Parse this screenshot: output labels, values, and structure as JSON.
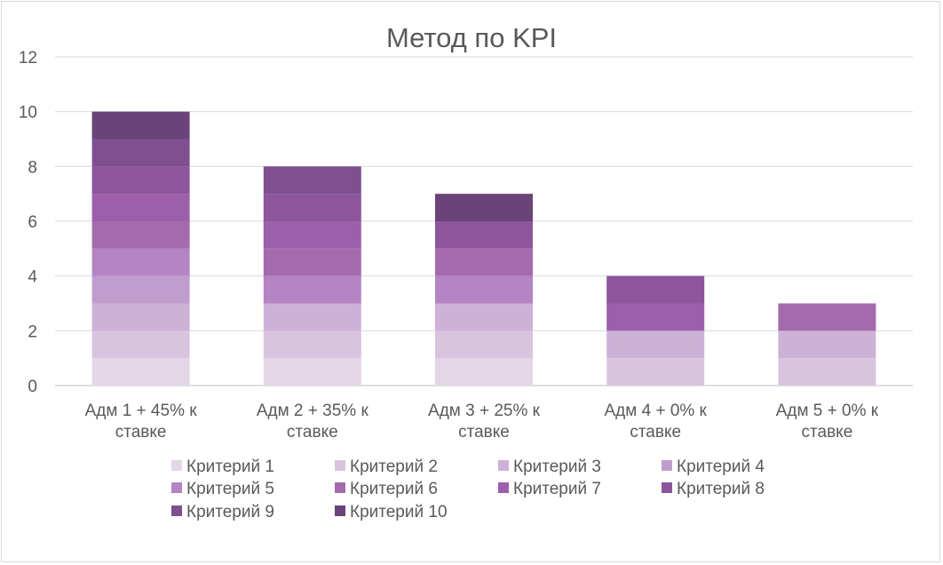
{
  "chart_data": {
    "type": "bar",
    "stacked": true,
    "title": "Метод по KPI",
    "categories": [
      [
        "Адм 1 + 45% к",
        "ставке"
      ],
      [
        "Адм 2 + 35% к",
        "ставке"
      ],
      [
        "Адм 3 + 25% к",
        "ставке"
      ],
      [
        "Адм 4 + 0% к",
        "ставке"
      ],
      [
        "Адм 5 + 0% к",
        "ставке"
      ]
    ],
    "series": [
      {
        "name": "Критерий 1",
        "color": "#e3d6e7",
        "values": [
          1,
          1,
          1,
          0,
          0
        ]
      },
      {
        "name": "Критерий 2",
        "color": "#d8c4df",
        "values": [
          1,
          1,
          1,
          1,
          1
        ]
      },
      {
        "name": "Критерий 3",
        "color": "#cdb1d7",
        "values": [
          1,
          1,
          1,
          1,
          1
        ]
      },
      {
        "name": "Критерий 4",
        "color": "#c19dcd",
        "values": [
          1,
          0,
          0,
          0,
          0
        ]
      },
      {
        "name": "Критерий 5",
        "color": "#b584c4",
        "values": [
          1,
          1,
          1,
          0,
          0
        ]
      },
      {
        "name": "Критерий 6",
        "color": "#a56aad",
        "values": [
          1,
          1,
          1,
          0,
          1
        ]
      },
      {
        "name": "Критерий 7",
        "color": "#9d5fab",
        "values": [
          1,
          1,
          0,
          1,
          0
        ]
      },
      {
        "name": "Критерий 8",
        "color": "#8c559c",
        "values": [
          1,
          1,
          1,
          1,
          0
        ]
      },
      {
        "name": "Критерий 9",
        "color": "#7e5091",
        "values": [
          1,
          1,
          0,
          0,
          0
        ]
      },
      {
        "name": "Критерий 10",
        "color": "#6a4478",
        "values": [
          1,
          0,
          1,
          0,
          0
        ]
      }
    ],
    "ylim": [
      0,
      12
    ],
    "yticks": [
      0,
      2,
      4,
      6,
      8,
      10,
      12
    ],
    "grid": true,
    "legend_position": "bottom"
  }
}
